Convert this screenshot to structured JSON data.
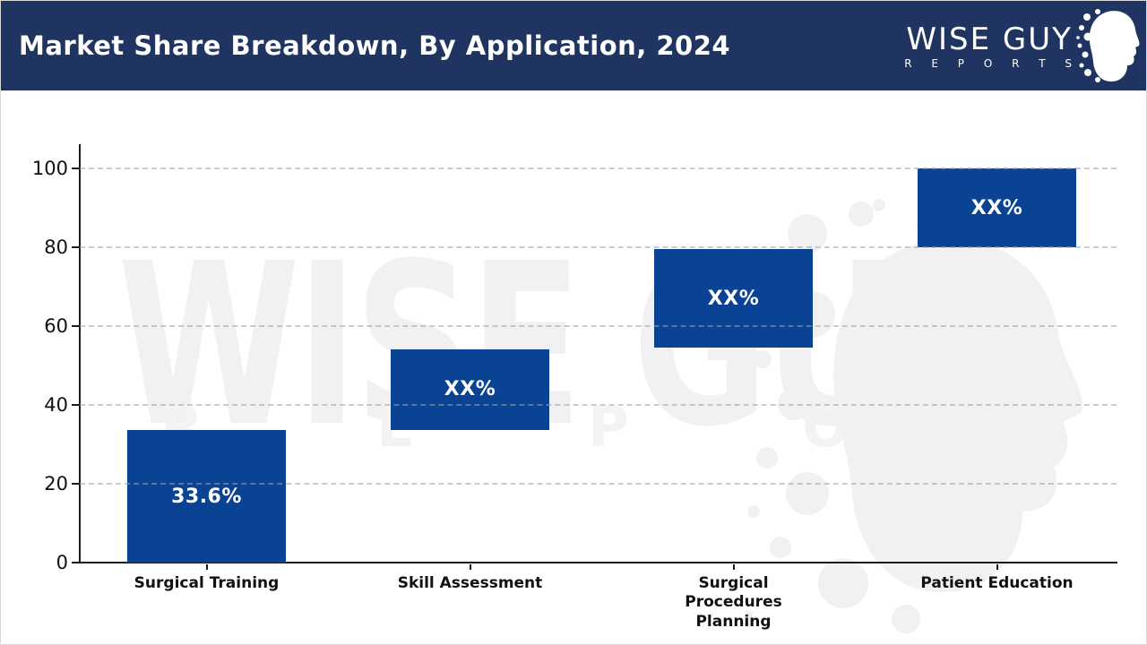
{
  "header": {
    "title": "Market Share Breakdown, By Application, 2024",
    "bg_color": "#1f3461",
    "logo": {
      "line1": "WISE GUY",
      "line2": "R E P O R T S"
    }
  },
  "watermark": {
    "line1": "WISE GUY",
    "line2": "R E P O R T S"
  },
  "chart_data": {
    "type": "bar",
    "subtype": "waterfall",
    "title": "Market Share Breakdown, By Application, 2024",
    "categories": [
      "Surgical Training",
      "Skill Assessment",
      "Surgical Procedures Planning",
      "Patient Education"
    ],
    "bars": [
      {
        "category": "Surgical Training",
        "start": 0,
        "end": 33.6,
        "label": "33.6%"
      },
      {
        "category": "Skill Assessment",
        "start": 33.6,
        "end": 54.2,
        "label": "XX%"
      },
      {
        "category": "Surgical Procedures Planning",
        "start": 54.5,
        "end": 79.5,
        "label": "XX%"
      },
      {
        "category": "Patient Education",
        "start": 80,
        "end": 100,
        "label": "XX%"
      }
    ],
    "xlabel": "",
    "ylabel": "",
    "ylim": [
      0,
      106
    ],
    "yticks": [
      0,
      20,
      40,
      60,
      80,
      100
    ],
    "grid": "dashed horizontal",
    "legend": "none",
    "bar_color": "#0a4394",
    "bar_label_color": "#ffffff"
  }
}
